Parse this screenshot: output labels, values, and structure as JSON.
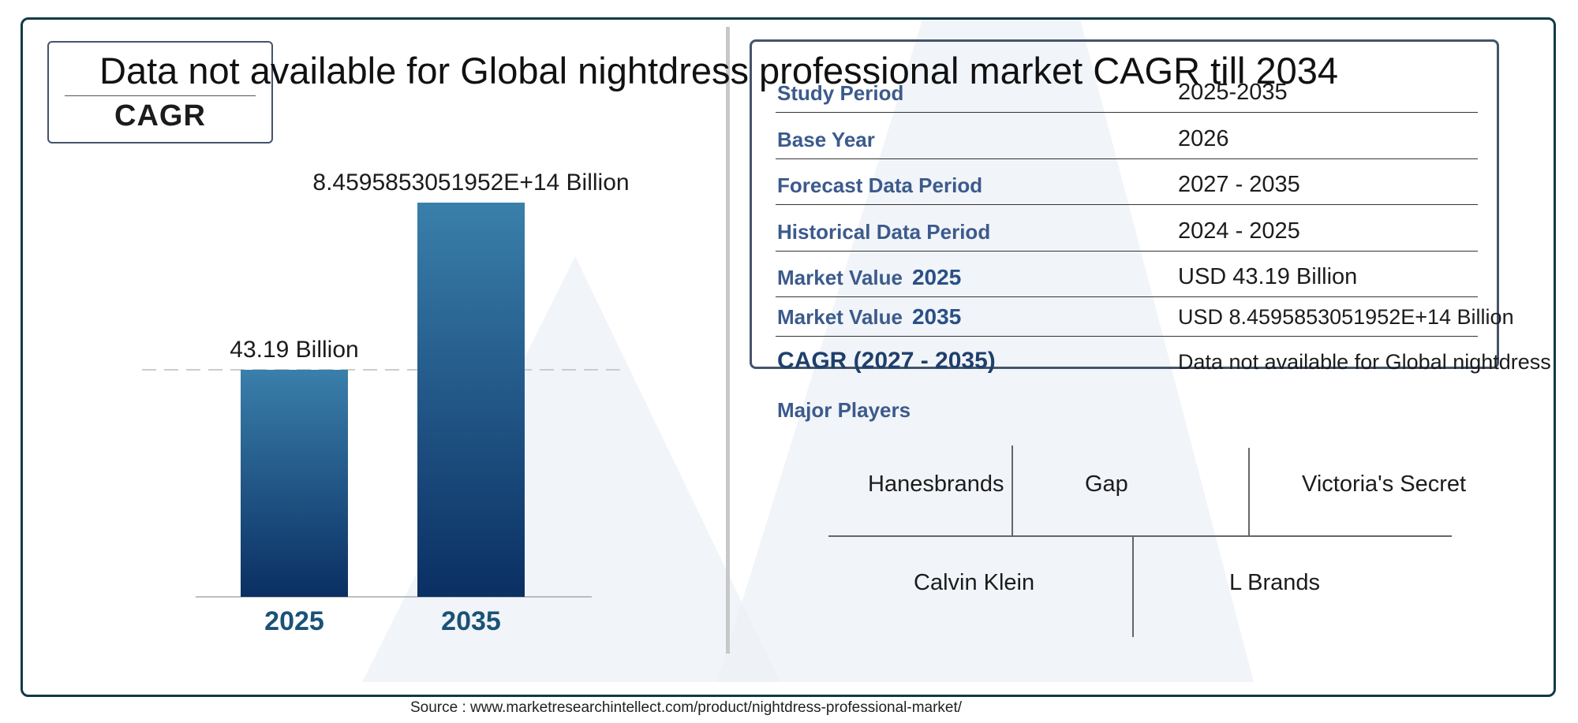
{
  "headline": "Data not available for Global nightdress professional market CAGR till 2034",
  "cagr_box": {
    "label": "CAGR"
  },
  "chart_data": {
    "type": "bar",
    "categories": [
      "2025",
      "2035"
    ],
    "values": [
      43.19,
      845958530519520
    ],
    "data_labels": [
      "43.19 Billion",
      "8.4595853051952E+14 Billion"
    ],
    "title": "",
    "xlabel": "",
    "ylabel": "",
    "colors": {
      "bar_top": "#3a7fab",
      "bar_bottom": "#0a2f63",
      "category_text": "#1b5277"
    },
    "grid": false
  },
  "info_table": {
    "rows": [
      {
        "label": "Study Period",
        "year": "",
        "value": "2025-2035"
      },
      {
        "label": "Base Year",
        "year": "",
        "value": "2026"
      },
      {
        "label": "Forecast Data Period",
        "year": "",
        "value": "2027 - 2035"
      },
      {
        "label": "Historical Data Period",
        "year": "",
        "value": "2024 - 2025"
      },
      {
        "label": "Market Value",
        "year": "2025",
        "value": "USD 43.19 Billion"
      },
      {
        "label": "Market Value",
        "year": "2035",
        "value": "USD 8.4595853051952E+14 Billion"
      },
      {
        "label": "CAGR (2027 - 2035)",
        "year": "",
        "value": "Data not available for Global nightdress"
      }
    ]
  },
  "players": {
    "title": "Major Players",
    "items": [
      "Hanesbrands",
      "Gap",
      "Victoria's Secret",
      "Calvin Klein",
      "L Brands"
    ]
  },
  "source": "Source : www.marketresearchintellect.com/product/nightdress-professional-market/"
}
